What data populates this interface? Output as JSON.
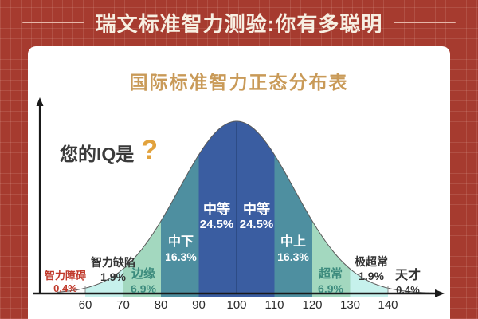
{
  "header": {
    "title": "瑞文标准智力测验:你有多聪明"
  },
  "card": {
    "chart_title": "国际标准智力正态分布表",
    "prompt_text": "您的IQ是",
    "prompt_mark": "?"
  },
  "chart_data": {
    "type": "area",
    "title": "国际标准智力正态分布表",
    "description": "Normal (bell) distribution of IQ scores, mean 100, split into bands every 10 IQ points",
    "x_ticks": [
      60,
      70,
      80,
      90,
      100,
      110,
      120,
      130,
      140
    ],
    "segments": [
      {
        "range": "<60",
        "label": "智力障碍",
        "pct": "0.4%",
        "value": 0.4,
        "fill": "#fefefe",
        "label_color": "#c0392b"
      },
      {
        "range": "60-70",
        "label": "智力缺陷",
        "pct": "1.9%",
        "value": 1.9,
        "fill": "#c6f1ec",
        "label_color": "#333333"
      },
      {
        "range": "70-80",
        "label": "边缘",
        "pct": "6.9%",
        "value": 6.9,
        "fill": "#a3d8bf",
        "label_color": "#3c8b7d"
      },
      {
        "range": "80-90",
        "label": "中下",
        "pct": "16.3%",
        "value": 16.3,
        "fill": "#4e8fa0",
        "label_color": "#ffffff"
      },
      {
        "range": "90-100",
        "label": "中等",
        "pct": "24.5%",
        "value": 24.5,
        "fill": "#3a5da1",
        "label_color": "#ffffff"
      },
      {
        "range": "100-110",
        "label": "中等",
        "pct": "24.5%",
        "value": 24.5,
        "fill": "#3a5da1",
        "label_color": "#ffffff"
      },
      {
        "range": "110-120",
        "label": "中上",
        "pct": "16.3%",
        "value": 16.3,
        "fill": "#4e8fa0",
        "label_color": "#ffffff"
      },
      {
        "range": "120-130",
        "label": "超常",
        "pct": "6.9%",
        "value": 6.9,
        "fill": "#a3d8bf",
        "label_color": "#3c8b7d"
      },
      {
        "range": "130-140",
        "label": "极超常",
        "pct": "1.9%",
        "value": 1.9,
        "fill": "#c6f1ec",
        "label_color": "#333333"
      },
      {
        "range": ">140",
        "label": "天才",
        "pct": "0.4%",
        "value": 0.4,
        "fill": "#fefefe",
        "label_color": "#333333"
      }
    ],
    "axes": {
      "x_mean": 100,
      "x_tick_step": 10,
      "y_axis": "frequency (unlabeled)"
    },
    "legend": "none",
    "grid": false
  },
  "colors": {
    "background_red": "#a63b2f",
    "header_text": "#f7efe2",
    "chart_title_gold": "#c99a58",
    "question_mark_gold": "#e2a23c",
    "curve_outline": "#5a5a5a",
    "center_line": "#2a4880",
    "axis": "#1a1a1a"
  }
}
